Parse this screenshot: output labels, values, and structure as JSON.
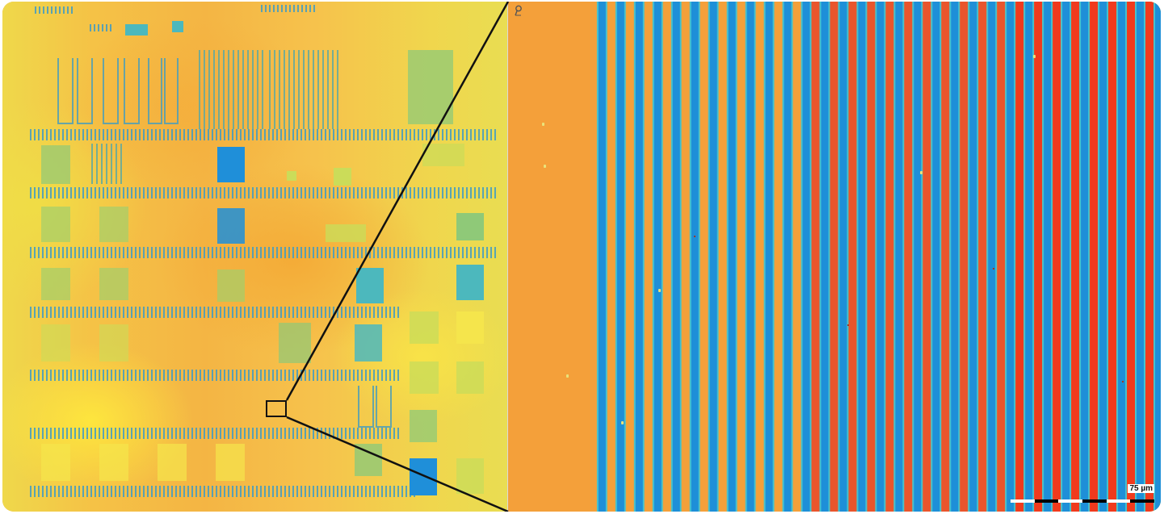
{
  "overview": {
    "name": "wafer-overview-map"
  },
  "detail": {
    "name": "magnified-stripe-view",
    "scale_bar_label": "75 µm",
    "stripe_colors": [
      "#f4a03a",
      "#1e8fd8",
      "#45c3cf",
      "#e9552c",
      "#f03a1d"
    ]
  },
  "icons": {
    "marker": "location-pin-icon"
  }
}
